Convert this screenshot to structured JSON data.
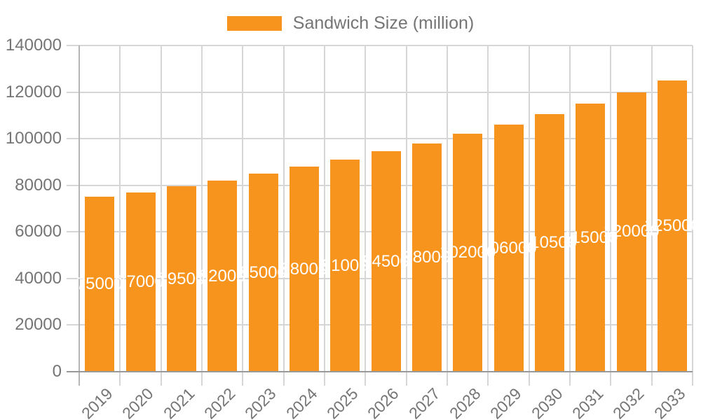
{
  "legend": {
    "label": "Sandwich Size (million)"
  },
  "colors": {
    "bar": "#F7941E",
    "bar_label": "#FFFFFF",
    "axis_text": "#757575",
    "grid_line": "#D6D6D6",
    "axis_line": "#999999",
    "first_vline": "#B5B5B5"
  },
  "chart_data": {
    "type": "bar",
    "title": "",
    "xlabel": "",
    "ylabel": "",
    "categories": [
      "2019",
      "2020",
      "2021",
      "2022",
      "2023",
      "2024",
      "2025",
      "2026",
      "2027",
      "2028",
      "2029",
      "2030",
      "2031",
      "2032",
      "2033"
    ],
    "series": [
      {
        "name": "Sandwich Size (million)",
        "values": [
          75000,
          77000,
          79500,
          82000,
          85000,
          88000,
          91000,
          94500,
          98000,
          102000,
          106000,
          110500,
          115000,
          120000,
          125000
        ]
      }
    ],
    "ylim": [
      0,
      140000
    ],
    "ytick_step": 20000,
    "ytick_labels": [
      "0",
      "20000",
      "40000",
      "60000",
      "80000",
      "100000",
      "120000",
      "140000"
    ],
    "grid": true,
    "legend_position": "top",
    "data_labels": "inside-center-white"
  }
}
